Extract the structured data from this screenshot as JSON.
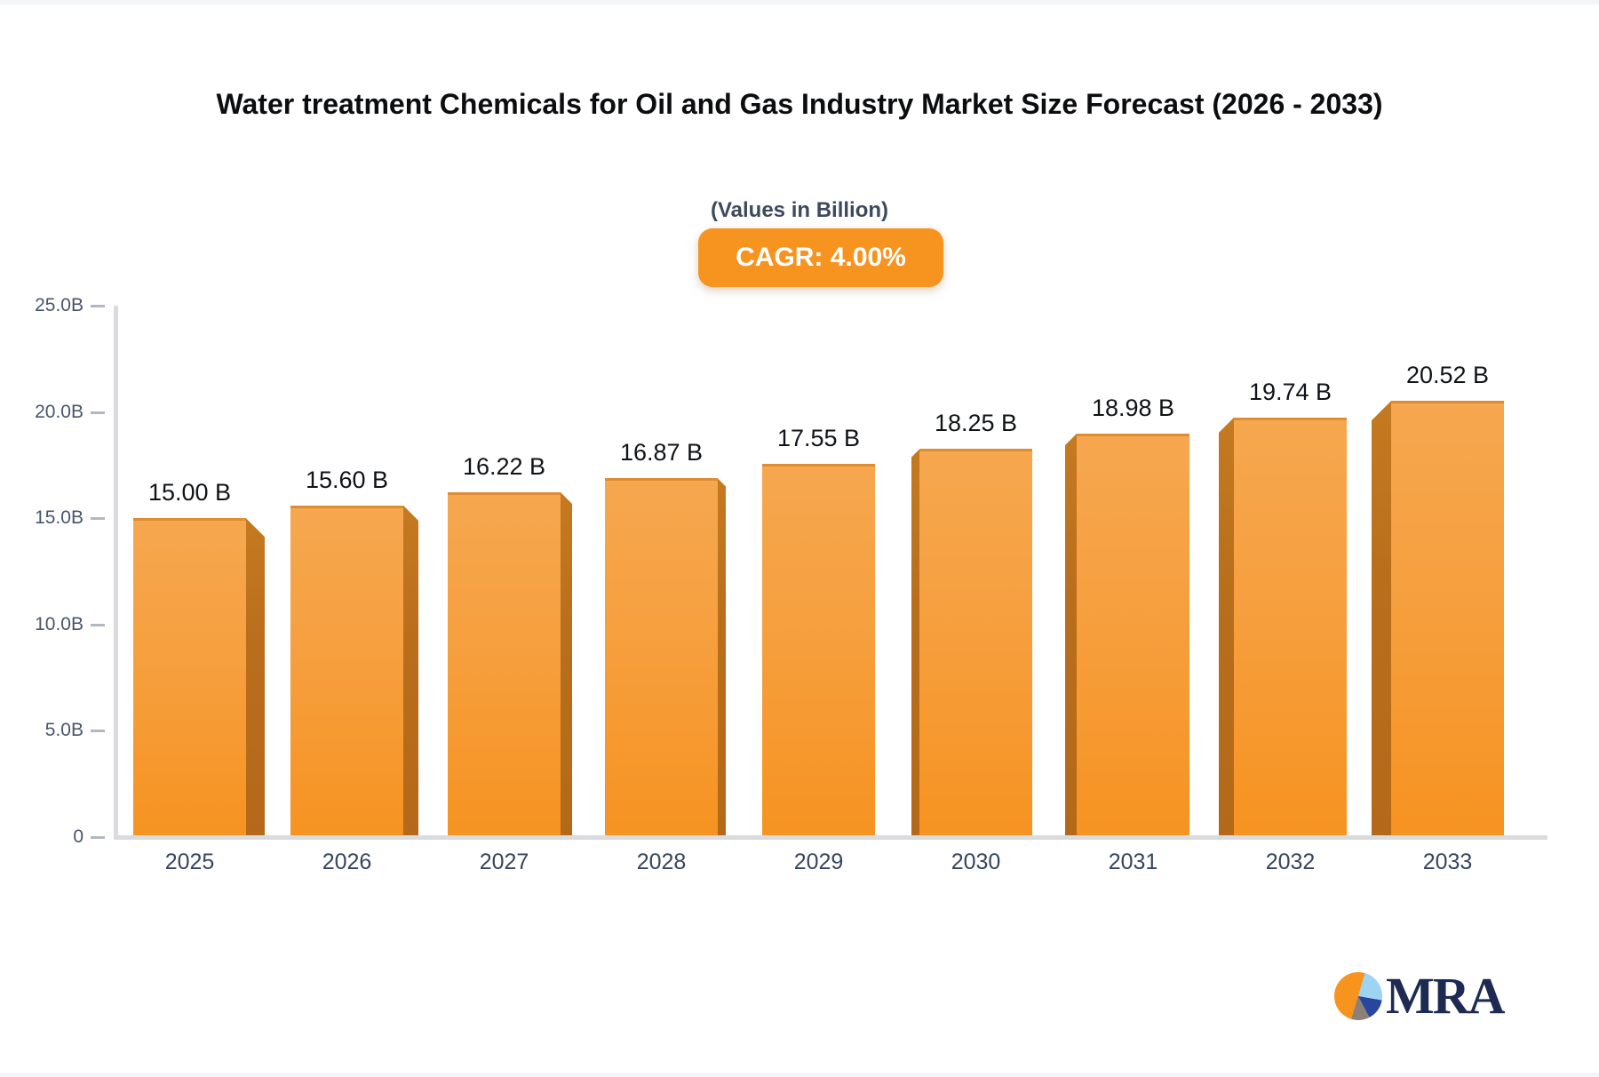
{
  "header": {
    "title": "Water treatment Chemicals for Oil and Gas Industry Market Size Forecast (2026 - 2033)",
    "subtitle": "(Values in Billion)",
    "cagr_badge": "CAGR: 4.00%"
  },
  "chart_data": {
    "type": "bar",
    "title": "Water treatment Chemicals for Oil and Gas Industry Market Size Forecast (2026 - 2033)",
    "subtitle": "(Values in Billion)",
    "cagr_percent": "4.00%",
    "categories": [
      "2025",
      "2026",
      "2027",
      "2028",
      "2029",
      "2030",
      "2031",
      "2032",
      "2033"
    ],
    "values": [
      15.0,
      15.6,
      16.22,
      16.87,
      17.55,
      18.25,
      18.98,
      19.74,
      20.52
    ],
    "value_labels": [
      "15.00 B",
      "15.60 B",
      "16.22 B",
      "16.87 B",
      "17.55 B",
      "18.25 B",
      "18.98 B",
      "19.74 B",
      "20.52 B"
    ],
    "unit": "Billion",
    "xlabel": "",
    "ylabel": "",
    "ylim": [
      0,
      25
    ],
    "yticks": [
      {
        "label": "25.0B",
        "value": 25
      },
      {
        "label": "20.0B",
        "value": 20
      },
      {
        "label": "15.0B",
        "value": 15
      },
      {
        "label": "10.0B",
        "value": 10
      },
      {
        "label": "5.0B",
        "value": 5
      },
      {
        "label": "0",
        "value": 0
      }
    ],
    "grid": false,
    "legend": "none",
    "bar_style": "3d-perspective"
  },
  "colors": {
    "bar_face_top": "#f6a74f",
    "bar_face_bottom": "#f69321",
    "bar_side": "#b96e1c",
    "badge_bg": "#f79420",
    "axis_line": "#d9dbde",
    "label_dark": "#101317",
    "label_slate": "#36455e",
    "logo_navy": "#1d2a52",
    "logo_orange": "#f7941e"
  },
  "logo": {
    "text": "MRA",
    "icon": "pie-chart-logo-icon"
  }
}
